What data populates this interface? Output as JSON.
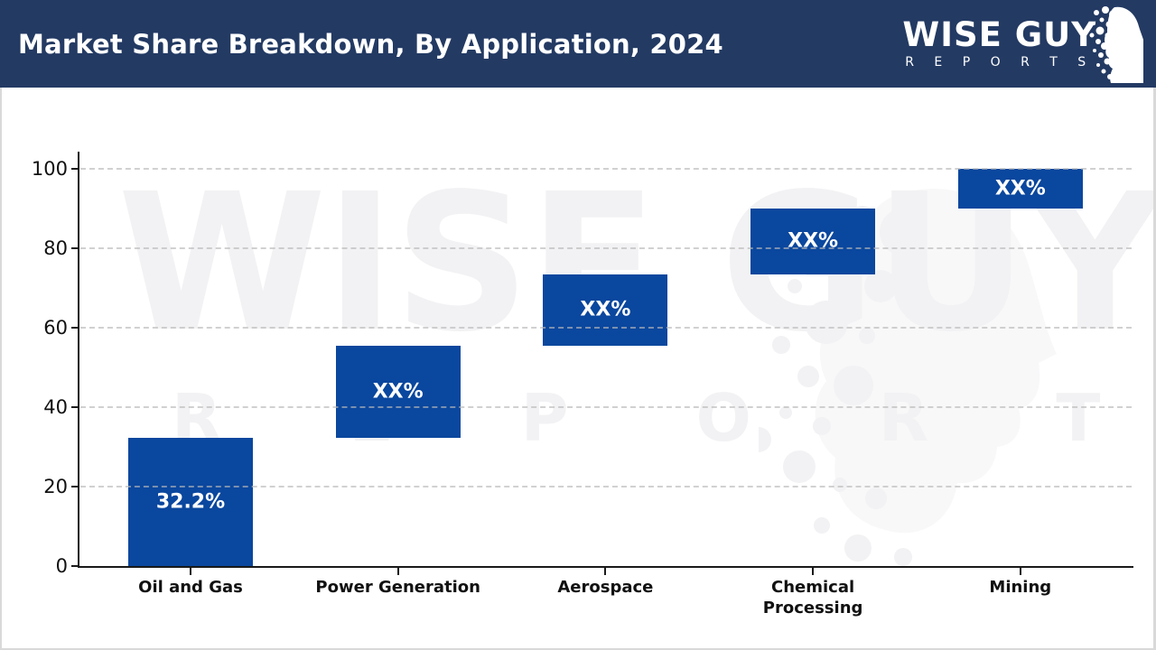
{
  "header": {
    "title": "Market Share Breakdown, By Application, 2024",
    "background_color": "#233a63",
    "logo": {
      "line1": "WISE GUY",
      "line2": "R E P O R T S"
    }
  },
  "watermark": {
    "line1": "WISE GUY",
    "line2": "R E P O R T S"
  },
  "chart_data": {
    "type": "bar",
    "subtype": "waterfall-style floating bars",
    "title": "Market Share Breakdown, By Application, 2024",
    "categories": [
      "Oil and Gas",
      "Power Generation",
      "Aerospace",
      "Chemical\nProcessing",
      "Mining"
    ],
    "segments": [
      {
        "category": "Oil and Gas",
        "start": 0,
        "end": 32.2,
        "label": "32.2%"
      },
      {
        "category": "Power Generation",
        "start": 32.2,
        "end": 55.5,
        "label": "XX%"
      },
      {
        "category": "Aerospace",
        "start": 55.5,
        "end": 73.5,
        "label": "XX%"
      },
      {
        "category": "Chemical Processing",
        "start": 73.5,
        "end": 90,
        "label": "XX%"
      },
      {
        "category": "Mining",
        "start": 90,
        "end": 100,
        "label": "XX%"
      }
    ],
    "yticks": [
      0,
      20,
      40,
      60,
      80,
      100
    ],
    "ylim": [
      0,
      104
    ],
    "xlabel": "",
    "ylabel": "",
    "legend": "none",
    "grid": "horizontal dashed at each ytick (drawn over bars)",
    "bar_color": "#0a479e",
    "bar_label_color": "#ffffff",
    "axis_color": "#1a1a1a"
  }
}
